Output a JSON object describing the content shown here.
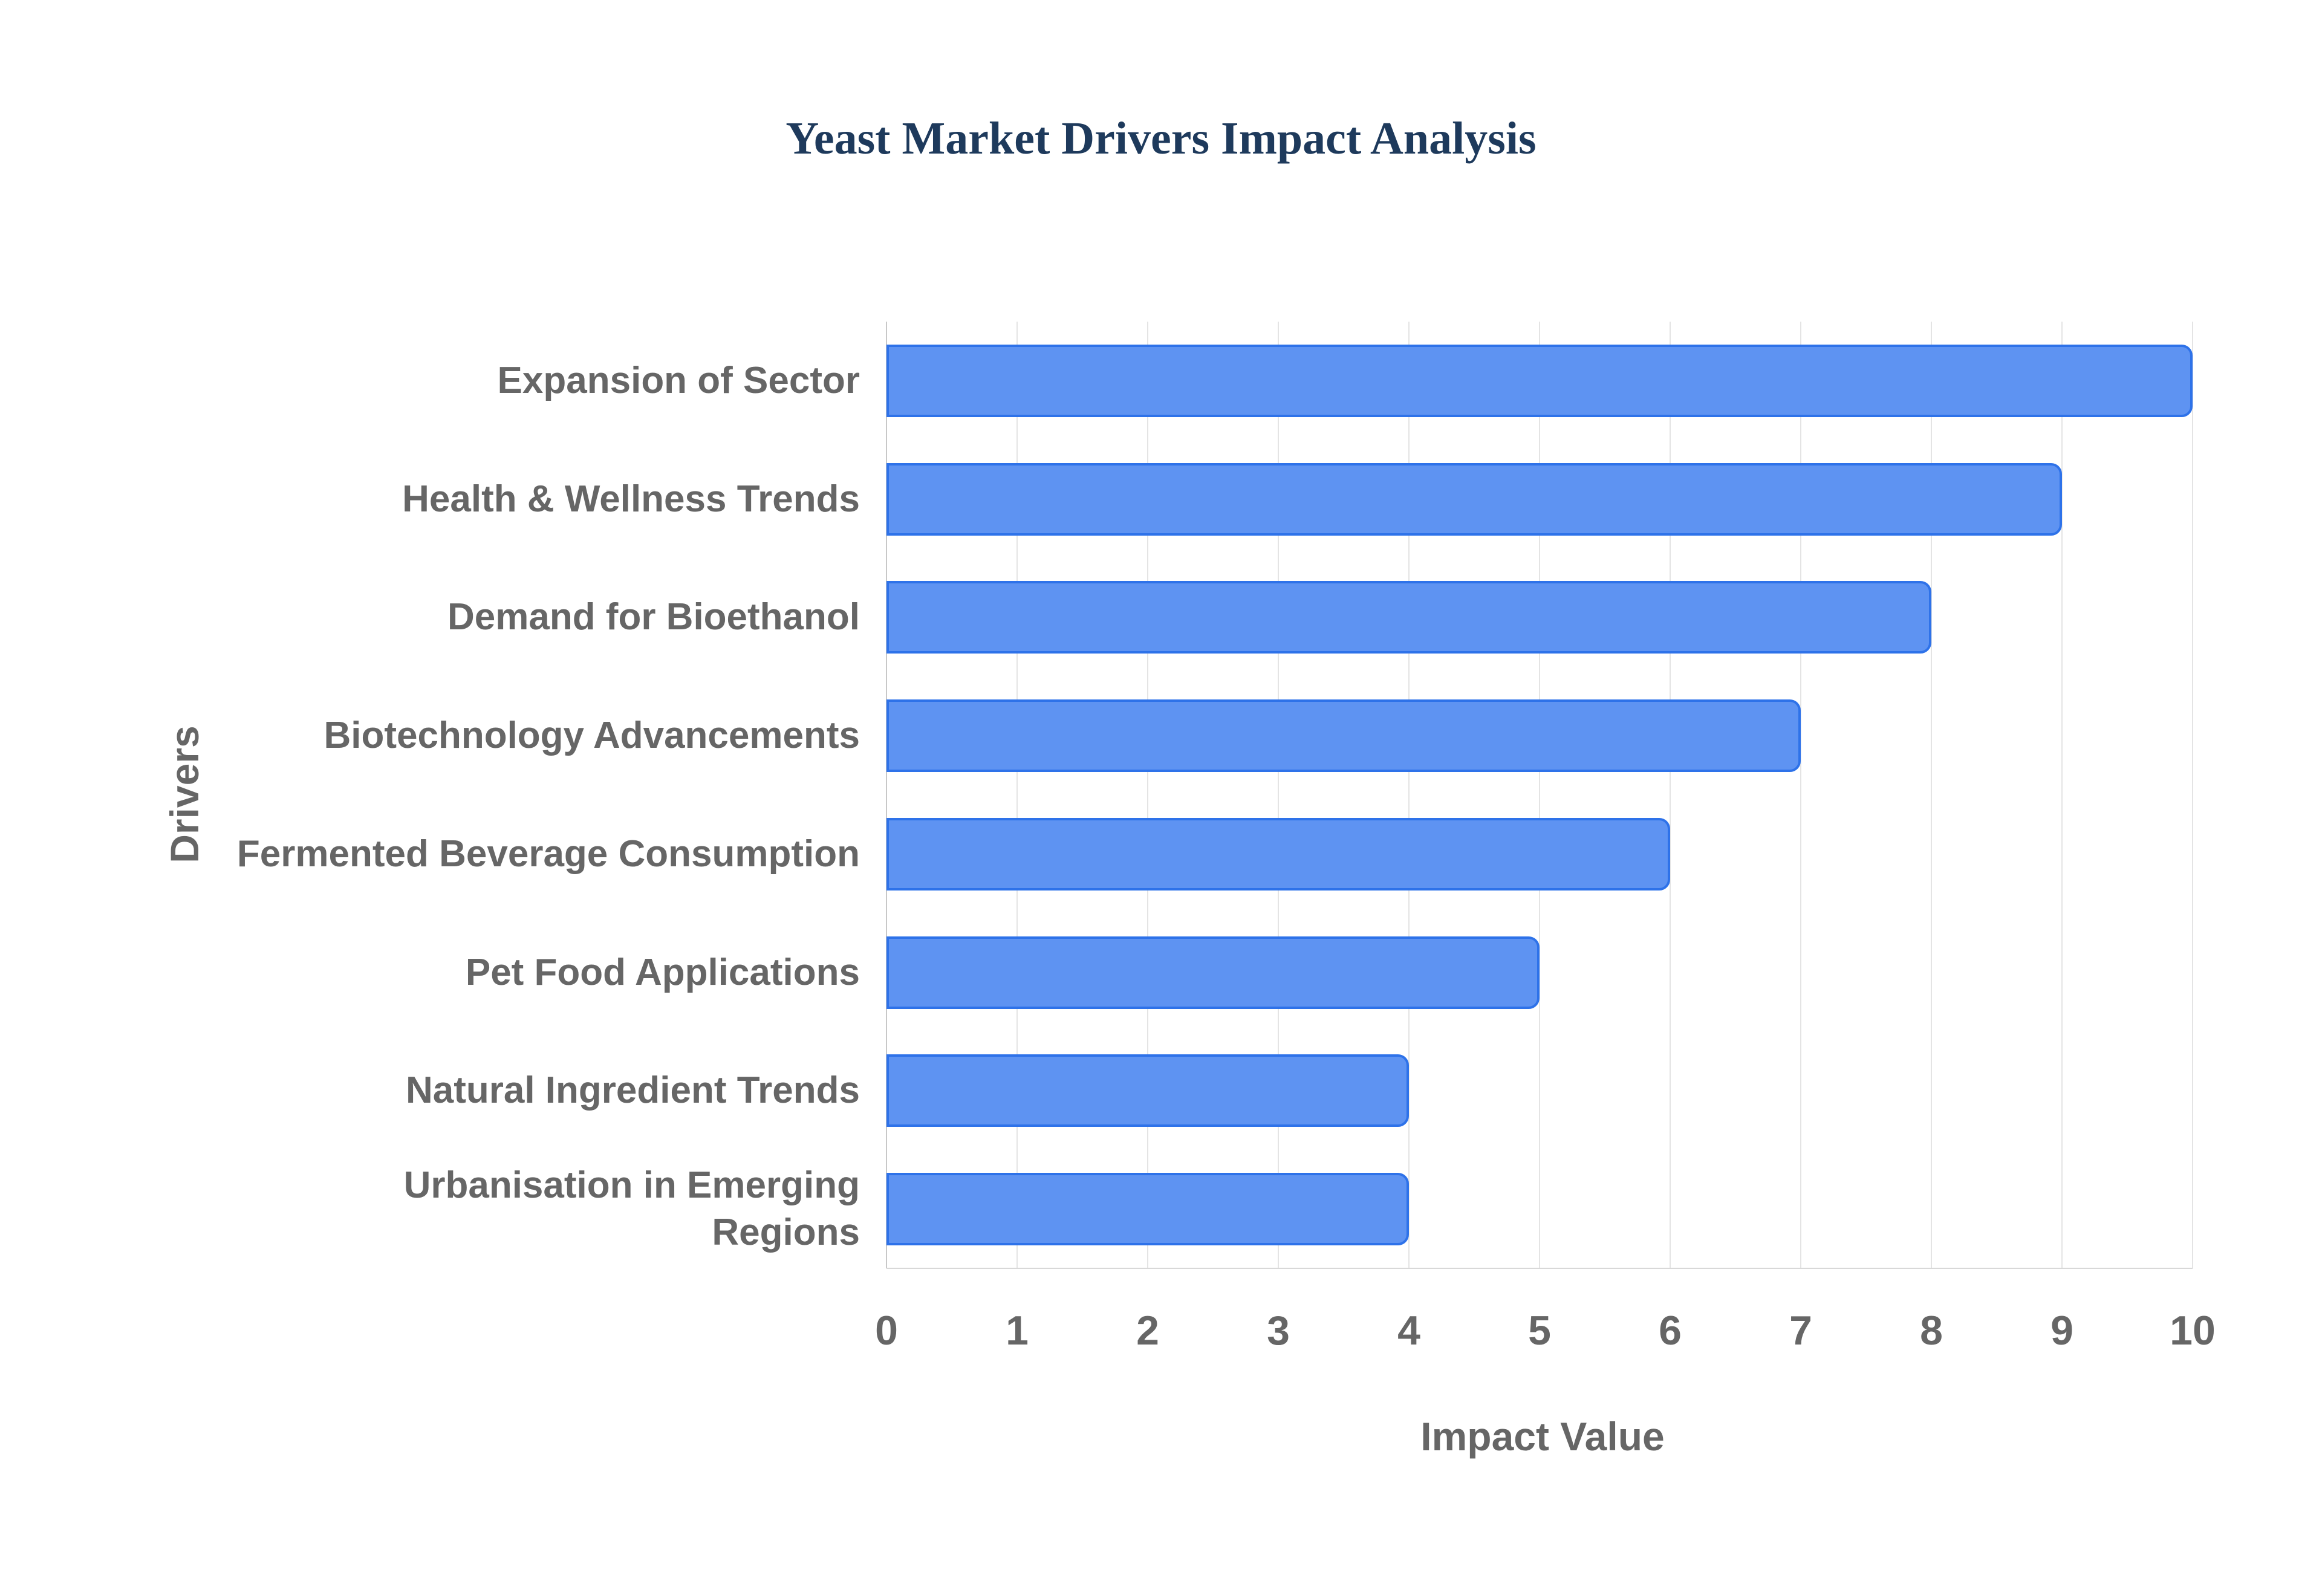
{
  "chart_data": {
    "type": "bar",
    "orientation": "horizontal",
    "title": "Yeast Market Drivers Impact Analysis",
    "xlabel": "Impact Value",
    "ylabel": "Drivers",
    "categories": [
      "Expansion of Sector",
      "Health & Wellness Trends",
      "Demand for Bioethanol",
      "Biotechnology Advancements",
      "Fermented Beverage Consumption",
      "Pet Food Applications",
      "Natural Ingredient Trends",
      "Urbanisation in Emerging\nRegions"
    ],
    "values": [
      10,
      9,
      8,
      7,
      6,
      5,
      4,
      4
    ],
    "xlim": [
      0,
      10
    ],
    "xticks": [
      0,
      1,
      2,
      3,
      4,
      5,
      6,
      7,
      8,
      9,
      10
    ],
    "grid": true,
    "legend": "none",
    "colors": {
      "bar_fill": "#5e93f2",
      "bar_border": "#2e72e9",
      "gridline": "#e4e4e4",
      "zero_axis_line": "#c8c8c8",
      "bottom_axis_line": "#d8d8d8",
      "label_text": "#666666",
      "title_text": "#1e3a5c"
    }
  }
}
